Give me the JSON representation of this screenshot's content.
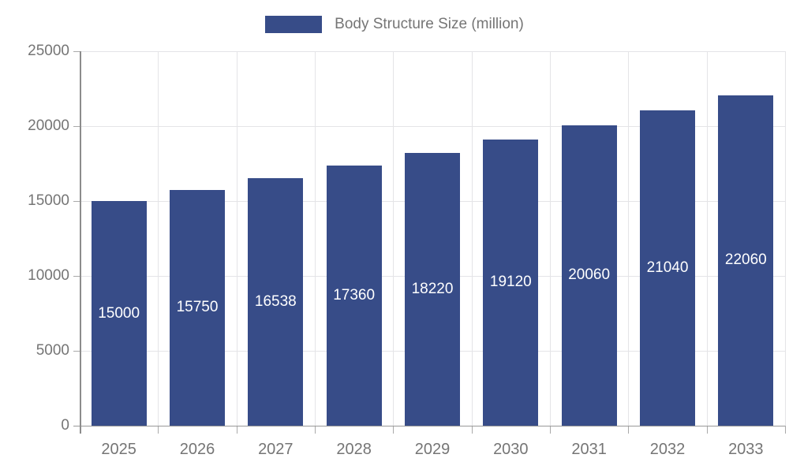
{
  "legend": {
    "items": [
      {
        "label": "Body Structure Size (million)",
        "color": "#374c88"
      }
    ]
  },
  "chart_data": {
    "type": "bar",
    "title": "Body Structure Size (million)",
    "series_name": "Body Structure Size (million)",
    "categories": [
      "2025",
      "2026",
      "2027",
      "2028",
      "2029",
      "2030",
      "2031",
      "2032",
      "2033"
    ],
    "values": [
      15000,
      15750,
      16538,
      17360,
      18220,
      19120,
      20060,
      21040,
      22060
    ],
    "value_labels": [
      "15000",
      "15750",
      "16538",
      "17360",
      "18220",
      "19120",
      "20060",
      "21040",
      "22060"
    ],
    "xlabel": "",
    "ylabel": "",
    "ylim": [
      0,
      25000
    ],
    "yticks": [
      0,
      5000,
      10000,
      15000,
      20000,
      25000
    ],
    "grid": true,
    "legend_position": "top-center",
    "bar_color": "#374c88",
    "value_label_color": "#ffffff",
    "axis_text_color": "#757575",
    "gridline_color": "#e4e4e7"
  }
}
